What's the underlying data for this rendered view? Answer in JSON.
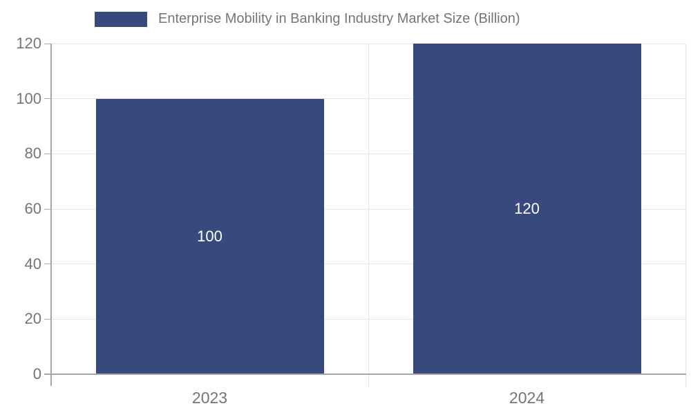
{
  "chart_data": {
    "type": "bar",
    "title": "Enterprise Mobility in Banking Industry Market Size (Billion)",
    "categories": [
      "2023",
      "2024"
    ],
    "series": [
      {
        "name": "Enterprise Mobility in Banking Industry Market Size (Billion)",
        "values": [
          100,
          120
        ]
      }
    ],
    "values": [
      100,
      120
    ],
    "data_labels": [
      "100",
      "120"
    ],
    "xlabel": "",
    "ylabel": "",
    "ylim": [
      0,
      120
    ],
    "yticks": [
      0,
      20,
      40,
      60,
      80,
      100,
      120
    ],
    "grid": true,
    "legend": {
      "position": "top",
      "entries": [
        "Enterprise Mobility in Banking Industry Market Size (Billion)"
      ]
    },
    "colors": {
      "bar": "#37497D",
      "axis": "#A6A6A6",
      "grid": "#E6E6E6",
      "text": "#757575",
      "data_label": "#FFFFFF",
      "background": "#FFFFFF"
    }
  }
}
